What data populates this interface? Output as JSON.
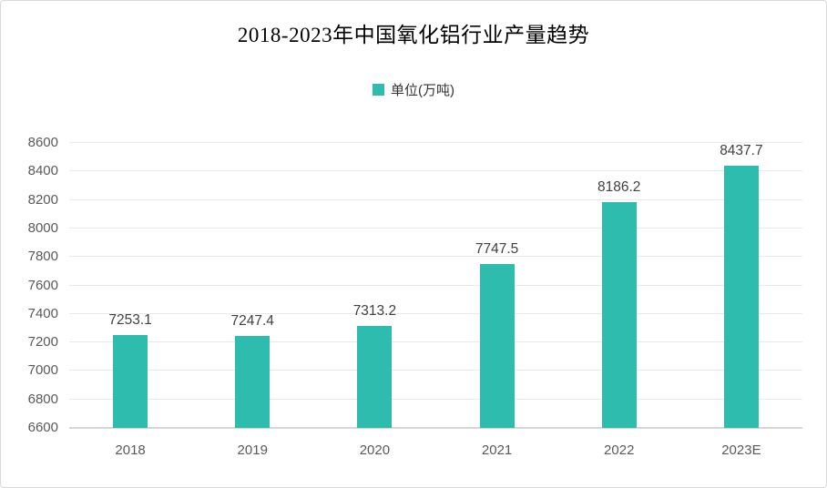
{
  "chart_data": {
    "type": "bar",
    "title": "2018-2023年中国氧化铝行业产量趋势",
    "legend_label": "单位(万吨)",
    "legend_position": "top",
    "categories": [
      "2018",
      "2019",
      "2020",
      "2021",
      "2022",
      "2023E"
    ],
    "values": [
      7253.1,
      7247.4,
      7313.2,
      7747.5,
      8186.2,
      8437.7
    ],
    "data_labels": [
      "7253.1",
      "7247.4",
      "7313.2",
      "7747.5",
      "8186.2",
      "8437.7"
    ],
    "ylim": [
      6600,
      8600
    ],
    "yticks": [
      6600,
      6800,
      7000,
      7200,
      7400,
      7600,
      7800,
      8000,
      8200,
      8400,
      8600
    ],
    "grid": true,
    "xlabel": "",
    "ylabel": "",
    "colors": {
      "bar": "#2DBCAD",
      "grid": "#E9E9E9",
      "axis_line": "#D6D6D6",
      "tick_label": "#595959",
      "data_label": "#404040",
      "title": "#000000",
      "border": "#D9D9D9",
      "background": "#FFFFFF"
    }
  }
}
